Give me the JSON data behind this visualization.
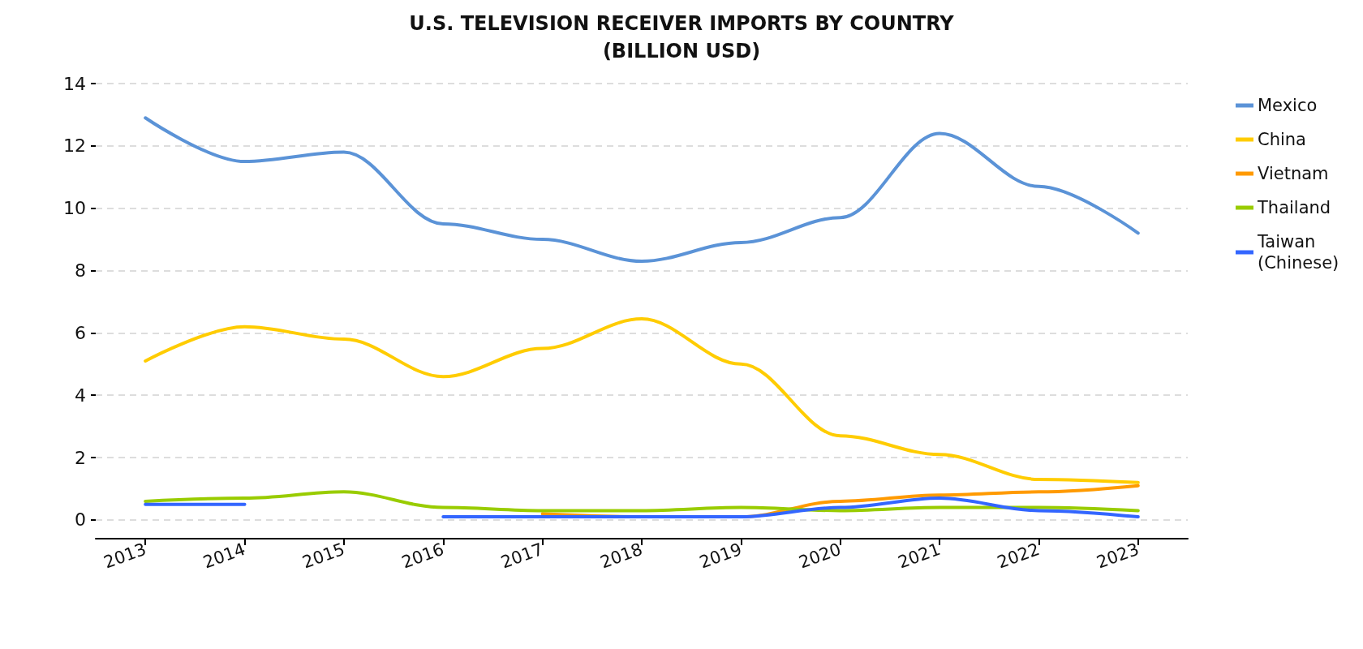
{
  "chart_data": {
    "type": "line",
    "title": "U.S. TELEVISION RECEIVER IMPORTS BY COUNTRY",
    "subtitle": "(BILLION USD)",
    "x": [
      2013,
      2014,
      2015,
      2016,
      2017,
      2018,
      2019,
      2020,
      2021,
      2022,
      2023
    ],
    "series": [
      {
        "name": "Mexico",
        "color": "#5b93d7",
        "values": [
          12.9,
          11.5,
          11.8,
          9.5,
          9.0,
          8.3,
          8.9,
          9.7,
          12.4,
          10.7,
          9.2
        ]
      },
      {
        "name": "China",
        "color": "#ffcc00",
        "values": [
          5.1,
          6.2,
          5.8,
          4.6,
          5.5,
          6.45,
          5.0,
          2.7,
          2.1,
          1.3,
          1.2
        ]
      },
      {
        "name": "Vietnam",
        "color": "#ff9a00",
        "values": [
          null,
          null,
          null,
          null,
          0.2,
          0.1,
          0.1,
          0.6,
          0.8,
          0.9,
          1.1
        ]
      },
      {
        "name": "Thailand",
        "color": "#99cc00",
        "values": [
          0.6,
          0.7,
          0.9,
          0.4,
          0.3,
          0.3,
          0.4,
          0.3,
          0.4,
          0.4,
          0.3
        ]
      },
      {
        "name": "Taiwan (Chinese)",
        "color": "#3366ff",
        "values": [
          0.5,
          0.5,
          null,
          0.1,
          0.1,
          0.1,
          0.1,
          0.4,
          0.7,
          0.3,
          0.1
        ]
      }
    ],
    "xlim": [
      2012.5,
      2023.5
    ],
    "xticks": [
      2013,
      2014,
      2015,
      2016,
      2017,
      2018,
      2019,
      2020,
      2021,
      2022,
      2023
    ],
    "ylim": [
      -0.6,
      14
    ],
    "yticks": [
      0,
      2,
      4,
      6,
      8,
      10,
      12,
      14
    ],
    "grid": "y",
    "legend": "top right"
  }
}
